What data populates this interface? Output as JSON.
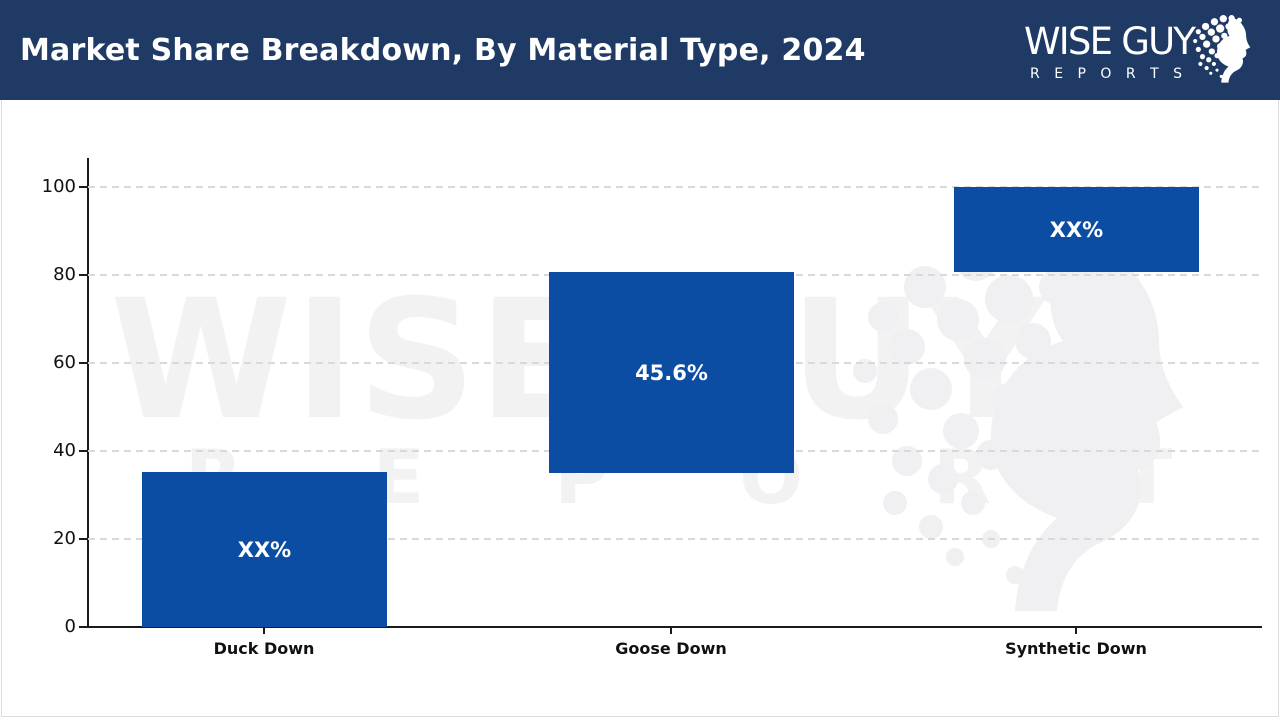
{
  "header": {
    "title": "Market Share Breakdown, By Material Type, 2024",
    "logo": {
      "line1": "WISE GUY",
      "line2": "R E P O R T S"
    }
  },
  "watermark": {
    "line1": "WISE GUY",
    "line2": "R E P O R T S"
  },
  "colors": {
    "header_bg": "#203a66",
    "title_text": "#ffffff",
    "bar": "#0b4da2",
    "bar_label": "#ffffff",
    "axis": "#1a1a1a",
    "gridline": "#d9d9d9",
    "watermark": "#f2f2f3",
    "card_border": "#dcdcdc"
  },
  "chart_data": {
    "type": "bar",
    "subtype": "waterfall-floating-bars",
    "title": "Market Share Breakdown, By Material Type, 2024",
    "categories": [
      "Duck Down",
      "Goose Down",
      "Synthetic Down"
    ],
    "series": [
      {
        "name": "Market share (%)",
        "segments": [
          {
            "category": "Duck Down",
            "start": 0,
            "end": 35.1,
            "label": "XX%"
          },
          {
            "category": "Goose Down",
            "start": 35.1,
            "end": 80.7,
            "label": "45.6%"
          },
          {
            "category": "Synthetic Down",
            "start": 80.7,
            "end": 100,
            "label": "XX%"
          }
        ]
      }
    ],
    "xlabel": "",
    "ylabel": "",
    "ylim": [
      0,
      106.5
    ],
    "yticks": [
      0,
      20,
      40,
      60,
      80,
      100
    ],
    "grid": "horizontal-dashed",
    "legend": "none"
  }
}
